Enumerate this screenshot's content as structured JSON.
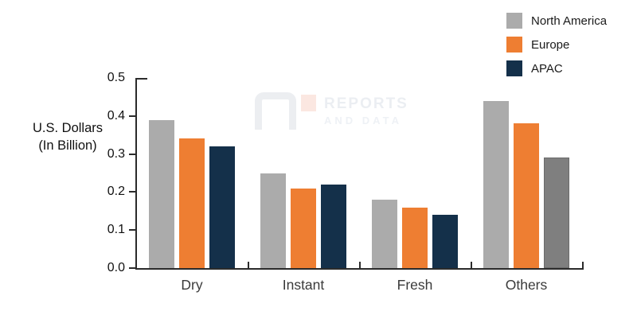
{
  "watermark": {
    "line1": "REPORTS",
    "line2": "AND DATA",
    "logo": "reports-and-data-logo"
  },
  "chart_data": {
    "type": "bar",
    "title": "",
    "categories": [
      "Dry",
      "Instant",
      "Fresh",
      "Others"
    ],
    "series": [
      {
        "name": "North America",
        "color": "#ABABAB",
        "values": [
          0.39,
          0.25,
          0.18,
          0.44
        ]
      },
      {
        "name": "Europe",
        "color": "#EE7E32",
        "values": [
          0.34,
          0.21,
          0.16,
          0.38
        ]
      },
      {
        "name": "APAC",
        "color": "#14304A",
        "values": [
          0.32,
          0.22,
          0.14,
          0.29
        ]
      }
    ],
    "bar_color_overrides": [
      {
        "category": "Others",
        "series": "APAC",
        "color": "#7F7F7F",
        "border": "#6B6B6B"
      }
    ],
    "ylabel": "U.S. Dollars (In Billion)",
    "ylabel_lines": [
      "U.S. Dollars",
      "(In Billion)"
    ],
    "xlabel": "",
    "ylim": [
      0,
      0.5
    ],
    "ytick_step": 0.1,
    "yticks": [
      "0.0",
      "0.1",
      "0.2",
      "0.3",
      "0.4",
      "0.5"
    ],
    "grid": false,
    "legend_position": "top-right",
    "axis_color": "#2b2b2b"
  }
}
